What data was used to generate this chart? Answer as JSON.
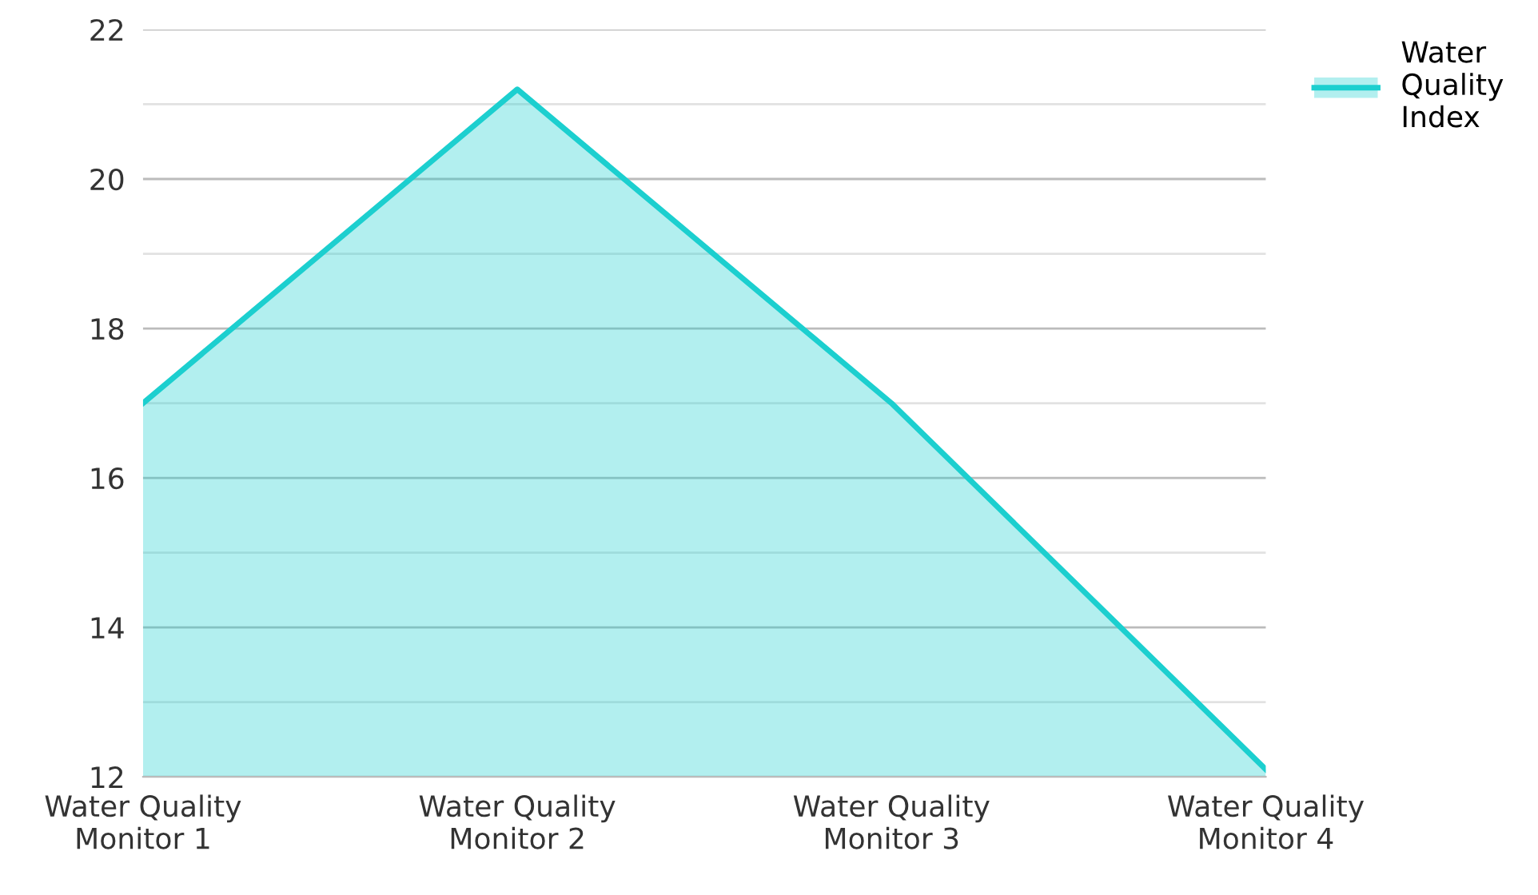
{
  "chart_data": {
    "type": "area",
    "categories": [
      "Water Quality\nMonitor 1",
      "Water Quality\nMonitor 2",
      "Water Quality\nMonitor 3",
      "Water Quality\nMonitor 4"
    ],
    "series": [
      {
        "name": "Water\nQuality\nIndex",
        "color": "#1ccfcf",
        "values": [
          17.0,
          21.2,
          17.0,
          12.1
        ]
      }
    ],
    "ylim": [
      12,
      22
    ],
    "yticks": [
      12,
      {
        "value": 13,
        "label": null
      },
      14,
      {
        "value": 15,
        "label": null
      },
      16,
      {
        "value": 17,
        "label": null
      },
      18,
      {
        "value": 19,
        "label": null
      },
      20,
      {
        "value": 21,
        "label": null
      },
      22
    ],
    "grid": "y",
    "legend": "top right"
  }
}
